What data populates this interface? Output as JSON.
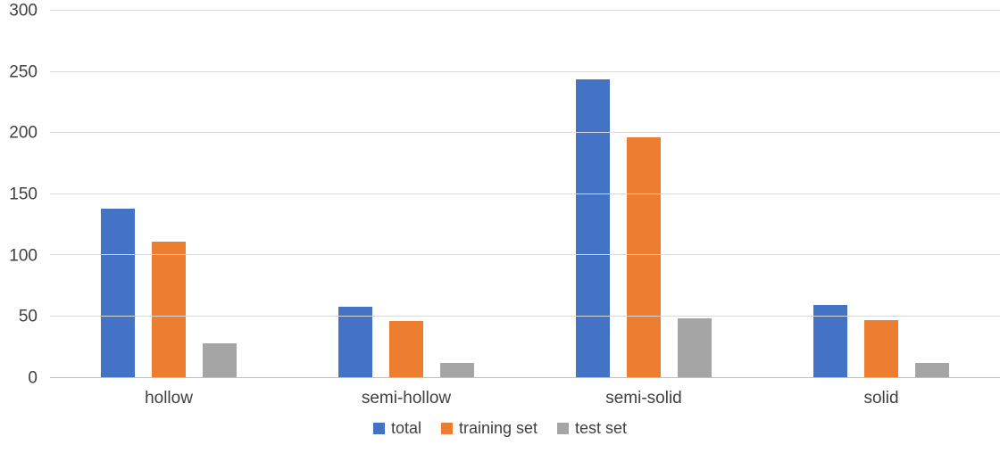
{
  "chart_data": {
    "type": "bar",
    "title": "",
    "xlabel": "",
    "ylabel": "",
    "categories": [
      "hollow",
      "semi-hollow",
      "semi-solid",
      "solid"
    ],
    "series": [
      {
        "name": "total",
        "color": "#4472C4",
        "values": [
          138,
          58,
          244,
          59
        ]
      },
      {
        "name": "training set",
        "color": "#ED7D31",
        "values": [
          111,
          46,
          196,
          47
        ]
      },
      {
        "name": "test set",
        "color": "#A5A5A5",
        "values": [
          28,
          12,
          48,
          12
        ]
      }
    ],
    "ylim": [
      0,
      300
    ],
    "yticks": [
      0,
      50,
      100,
      150,
      200,
      250,
      300
    ],
    "grid": true,
    "legend_position": "bottom"
  },
  "colors": {
    "gridline": "#D9D9D9",
    "axis_line": "#BFBFBF",
    "text": "#404040",
    "background": "#FFFFFF"
  }
}
